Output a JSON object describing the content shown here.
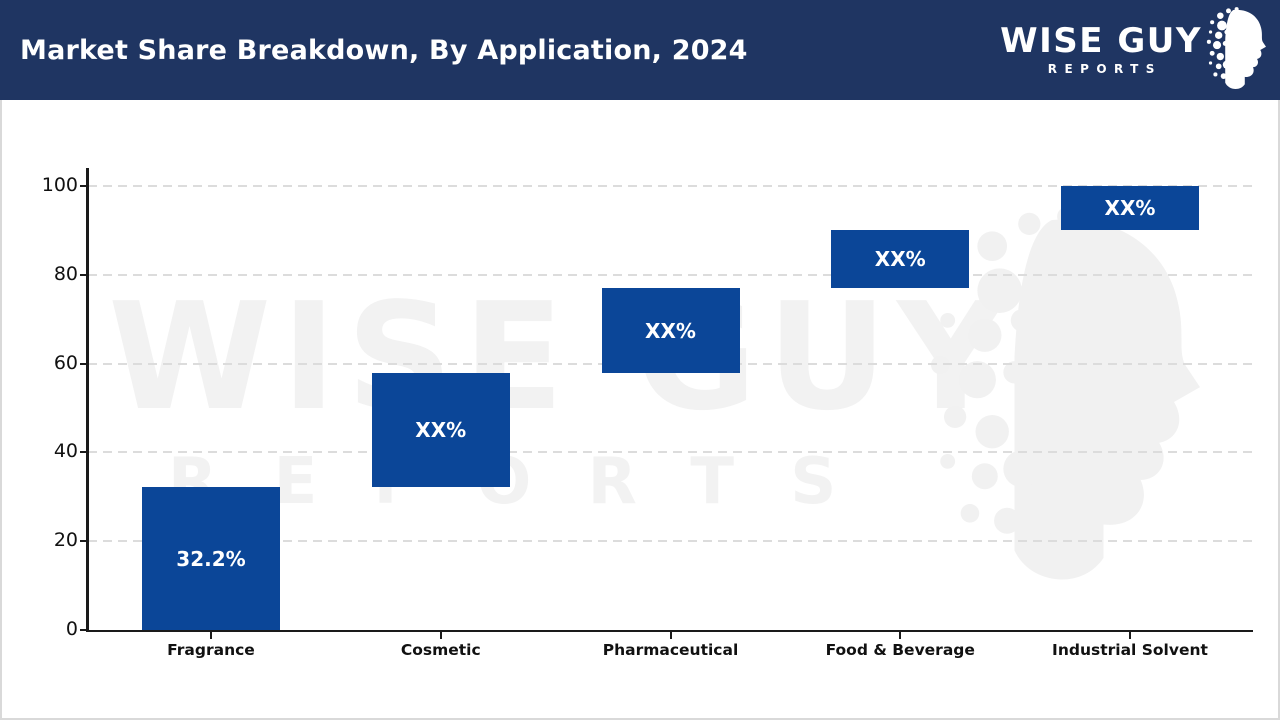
{
  "header": {
    "title": "Market Share Breakdown, By Application, 2024",
    "logo": {
      "line1": "WISE GUY",
      "line2": "REPORTS"
    }
  },
  "watermark": {
    "line1": "WISE GUY",
    "line2": "REPORTS"
  },
  "colors": {
    "header_background": "#1F3562",
    "bar_fill": "#0B4698",
    "bar_label_text": "#FFFFFF",
    "gridline": "#DCDCDC",
    "axis": "#1A1A1A"
  },
  "chart_data": {
    "type": "bar",
    "variant": "floating-waterfall",
    "title": "Market Share Breakdown, By Application, 2024",
    "xlabel": "",
    "ylabel": "",
    "categories": [
      "Fragrance",
      "Cosmetic",
      "Pharmaceutical",
      "Food & Beverage",
      "Industrial Solvent"
    ],
    "series": [
      {
        "name": "Market Share %",
        "ranges": [
          [
            0,
            32.2
          ],
          [
            32.2,
            57.8
          ],
          [
            57.8,
            77.1
          ],
          [
            77.1,
            90.0
          ],
          [
            90.0,
            100.0
          ]
        ]
      }
    ],
    "bar_labels": [
      "32.2%",
      "XX%",
      "XX%",
      "XX%",
      "XX%"
    ],
    "ylim": [
      0,
      100
    ],
    "yticks": [
      0,
      20,
      40,
      60,
      80,
      100
    ],
    "grid": "horizontal-dashed",
    "legend": "none"
  }
}
